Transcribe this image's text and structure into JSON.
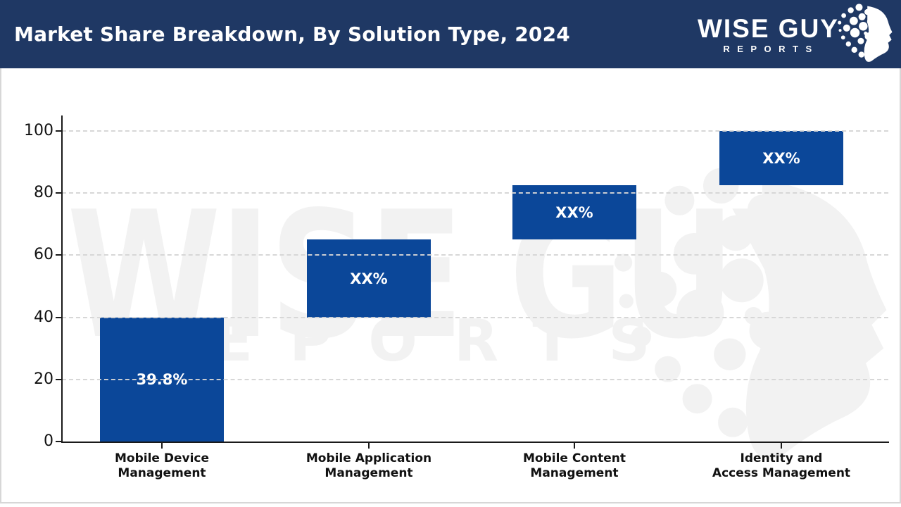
{
  "header": {
    "title": "Market Share Breakdown, By Solution Type, 2024",
    "logo": {
      "line1": "WISE GUY",
      "line2": "REPORTS"
    }
  },
  "watermark": {
    "line1": "WISE GUY",
    "line2": "REPORTS"
  },
  "chart_data": {
    "type": "bar",
    "subtype": "floating-waterfall",
    "title": "Market Share Breakdown, By Solution Type, 2024",
    "categories": [
      [
        "Mobile Device",
        "Management"
      ],
      [
        "Mobile Application",
        "Management"
      ],
      [
        "Mobile Content",
        "Management"
      ],
      [
        "Identity and",
        "Access Management"
      ]
    ],
    "bars": [
      {
        "category": "Mobile Device Management",
        "start": 0,
        "end": 39.8,
        "label": "39.8%"
      },
      {
        "category": "Mobile Application Management",
        "start": 39.8,
        "end": 65,
        "label": "XX%"
      },
      {
        "category": "Mobile Content Management",
        "start": 65,
        "end": 82.5,
        "label": "XX%"
      },
      {
        "category": "Identity and Access Management",
        "start": 82.5,
        "end": 100,
        "label": "XX%"
      }
    ],
    "ylim": [
      0,
      100
    ],
    "yticks": [
      0,
      20,
      40,
      60,
      80,
      100
    ],
    "xlabel": "",
    "ylabel": "",
    "legend": "none",
    "grid": {
      "horizontal": true,
      "style": "dashed"
    },
    "colors": {
      "bar": "#0b4799",
      "bar_label": "#ffffff",
      "axis": "#1a1a1a",
      "grid": "#d5d5d5",
      "header_bg": "#1f3864",
      "watermark": "#f2f2f2"
    }
  }
}
